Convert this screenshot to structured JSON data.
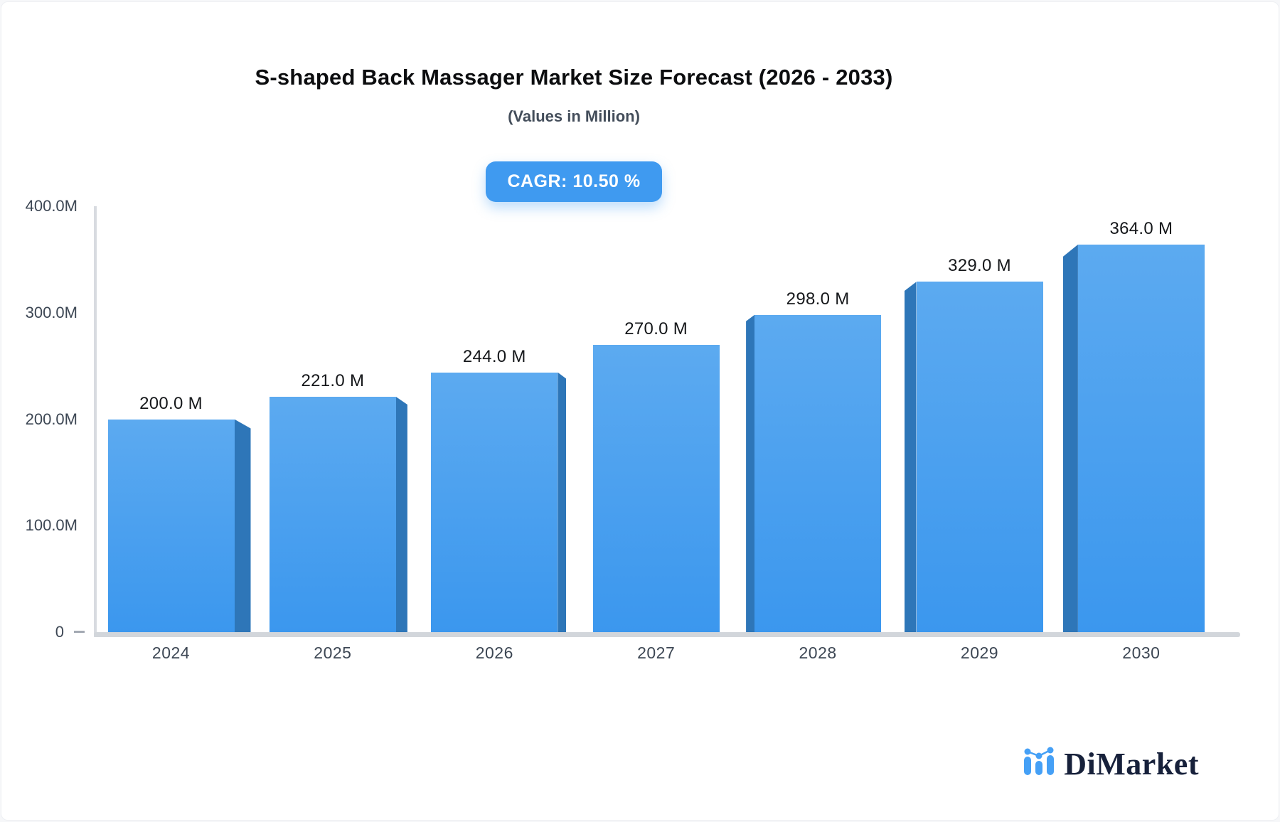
{
  "header": {
    "badge": {
      "label": "CAGR: 10.50 %",
      "background": "#3f9af0",
      "text_color": "#ffffff"
    }
  },
  "chart_data": {
    "type": "bar",
    "title": "S-shaped Back Massager Market Size Forecast (2026 - 2033)",
    "subtitle": "(Values in Million)",
    "cagr_percent": 10.5,
    "categories": [
      "2024",
      "2025",
      "2026",
      "2027",
      "2028",
      "2029",
      "2030"
    ],
    "values": [
      200.0,
      221.0,
      244.0,
      270.0,
      298.0,
      329.0,
      364.0
    ],
    "value_labels": [
      "200.0 M",
      "221.0 M",
      "244.0 M",
      "270.0 M",
      "298.0 M",
      "329.0 M",
      "364.0 M"
    ],
    "xlabel": "",
    "ylabel": "",
    "ylim": [
      0,
      400
    ],
    "yticks": [
      {
        "value": 0,
        "label": "0"
      },
      {
        "value": 100,
        "label": "100.0M"
      },
      {
        "value": 200,
        "label": "200.0M"
      },
      {
        "value": 300,
        "label": "300.0M"
      },
      {
        "value": 400,
        "label": "400.0M"
      }
    ],
    "grid": false,
    "legend": false,
    "bar_style": "pseudo-3d",
    "colors": {
      "bar_face_top": "#5caaf0",
      "bar_face_bottom": "#3b97ee",
      "bar_side": "#2e76b8",
      "axis_line": "#d8dbe0",
      "baseline": "#d2d6db",
      "tick_text": "#3d4754",
      "value_text": "#15171a",
      "title_text": "#0c0d0f",
      "subtitle_text": "#434d5a"
    }
  },
  "logo": {
    "text": "DiMarket",
    "icon": "mini-bar-chart-icon",
    "icon_color": "#45a0f6",
    "text_color": "#17213b"
  }
}
